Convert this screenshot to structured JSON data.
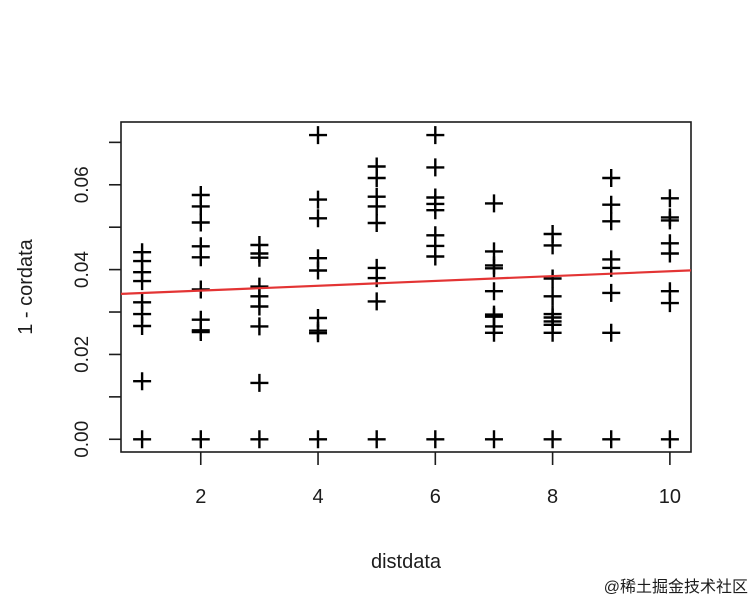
{
  "watermark": {
    "text": "@稀土掘金技术社区",
    "color": "#cbcbcb"
  },
  "chart_data": {
    "type": "scatter",
    "title": "",
    "xlabel": "distdata",
    "ylabel": "1 - cordata",
    "marker": "+",
    "marker_color": "#000000",
    "grid": false,
    "legend": "none",
    "xlim": [
      0.64,
      10.36
    ],
    "ylim": [
      -0.003,
      0.0748
    ],
    "x_ticks": [
      {
        "value": 2,
        "label": "2"
      },
      {
        "value": 4,
        "label": "4"
      },
      {
        "value": 6,
        "label": "6"
      },
      {
        "value": 8,
        "label": "8"
      },
      {
        "value": 10,
        "label": "10"
      }
    ],
    "y_ticks": [
      {
        "value": 0.0,
        "label": "0.00"
      },
      {
        "value": 0.01,
        "label": ""
      },
      {
        "value": 0.02,
        "label": "0.02"
      },
      {
        "value": 0.03,
        "label": ""
      },
      {
        "value": 0.04,
        "label": "0.04"
      },
      {
        "value": 0.05,
        "label": ""
      },
      {
        "value": 0.06,
        "label": "0.06"
      },
      {
        "value": 0.07,
        "label": ""
      }
    ],
    "points_by_x": [
      {
        "x": 1,
        "values": [
          0.0441,
          0.042,
          0.0394,
          0.0373,
          0.0323,
          0.0295,
          0.0267,
          0.0137,
          0.0
        ]
      },
      {
        "x": 2,
        "values": [
          0.0576,
          0.0549,
          0.0511,
          0.0455,
          0.0429,
          0.0353,
          0.0282,
          0.0257,
          0.0253,
          0.0
        ]
      },
      {
        "x": 3,
        "values": [
          0.0458,
          0.0438,
          0.0428,
          0.036,
          0.0337,
          0.0313,
          0.0266,
          0.0133,
          0.0
        ]
      },
      {
        "x": 4,
        "values": [
          0.0717,
          0.0565,
          0.0521,
          0.0427,
          0.0398,
          0.0286,
          0.0256,
          0.025,
          0.0
        ]
      },
      {
        "x": 5,
        "values": [
          0.0643,
          0.0616,
          0.0572,
          0.0549,
          0.051,
          0.0404,
          0.038,
          0.0325,
          0.0
        ]
      },
      {
        "x": 6,
        "values": [
          0.0717,
          0.0641,
          0.057,
          0.0555,
          0.054,
          0.0481,
          0.0456,
          0.0431,
          0.0
        ]
      },
      {
        "x": 7,
        "values": [
          0.0556,
          0.0443,
          0.041,
          0.0403,
          0.0349,
          0.0294,
          0.0289,
          0.0266,
          0.0251,
          0.0
        ]
      },
      {
        "x": 8,
        "values": [
          0.0484,
          0.0457,
          0.0379,
          0.0337,
          0.0295,
          0.0287,
          0.0278,
          0.027,
          0.0251,
          0.0
        ]
      },
      {
        "x": 9,
        "values": [
          0.0616,
          0.0553,
          0.0514,
          0.0424,
          0.0404,
          0.0345,
          0.0251,
          0.0
        ]
      },
      {
        "x": 10,
        "values": [
          0.0568,
          0.0523,
          0.0516,
          0.0462,
          0.0438,
          0.0349,
          0.0321,
          0.0
        ]
      }
    ],
    "regression_line": {
      "color": "#e33434",
      "intercept": 0.0339,
      "slope": 0.00057
    }
  }
}
